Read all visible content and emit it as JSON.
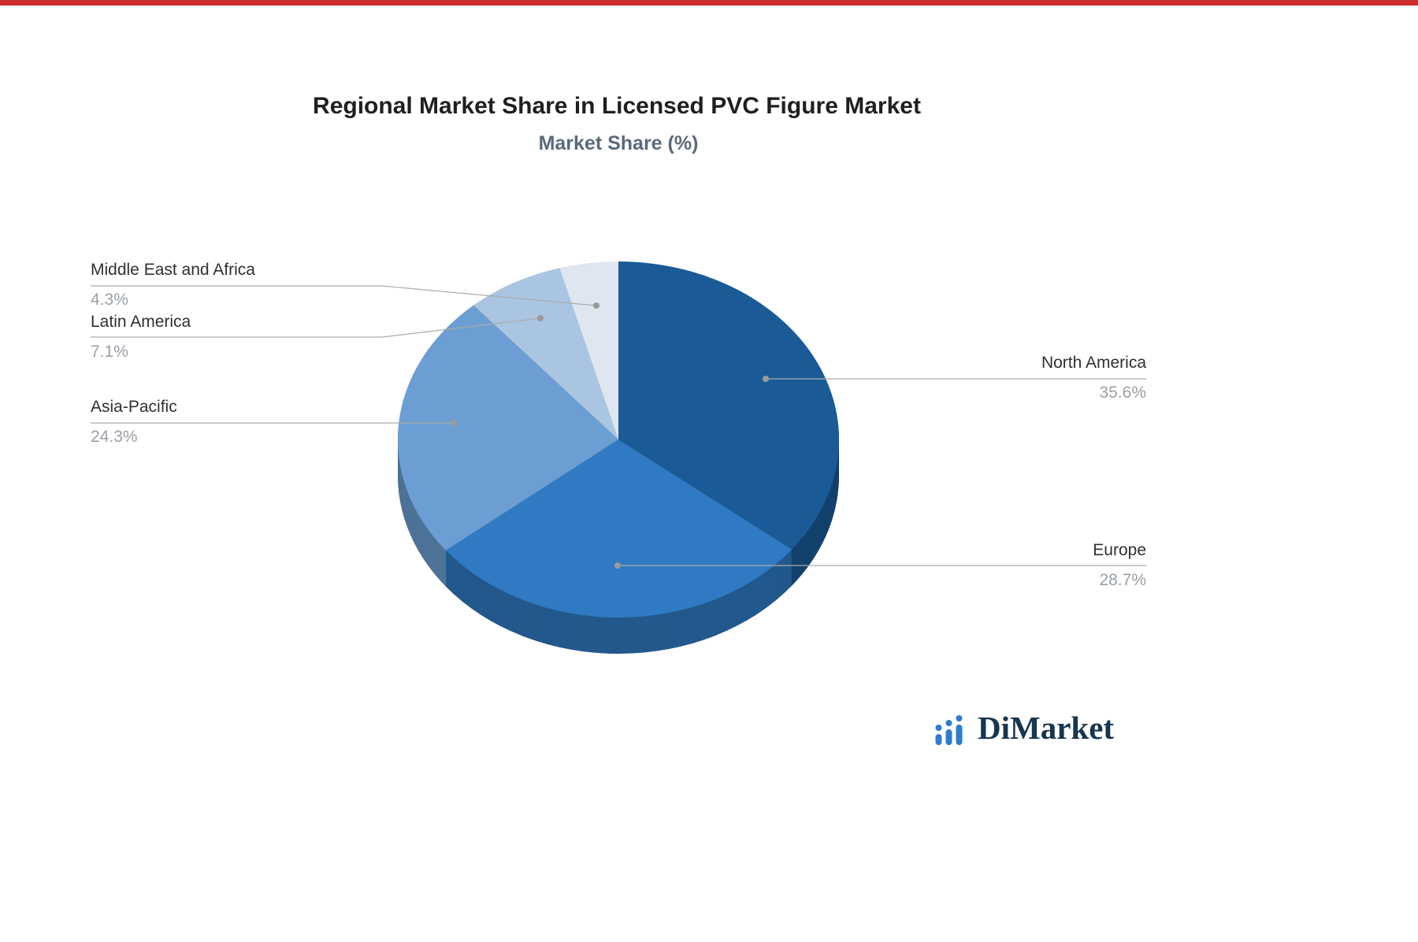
{
  "page": {
    "top_accent_color": "#cf2e2e"
  },
  "chart_data": {
    "type": "pie",
    "title": "Regional Market Share in Licensed PVC Figure Market",
    "subtitle": "Market Share (%)",
    "unit": "%",
    "legend_position": "none",
    "label_style": "callout-with-leader-lines",
    "style_3d": true,
    "slices": [
      {
        "name": "North America",
        "value": 35.6,
        "value_label": "35.6%",
        "color": "#1a5b97"
      },
      {
        "name": "Europe",
        "value": 28.7,
        "value_label": "28.7%",
        "color": "#2f7ac2"
      },
      {
        "name": "Asia-Pacific",
        "value": 24.3,
        "value_label": "24.3%",
        "color": "#6d9ed3"
      },
      {
        "name": "Latin America",
        "value": 7.1,
        "value_label": "7.1%",
        "color": "#aac5e2"
      },
      {
        "name": "Middle East and Africa",
        "value": 4.3,
        "value_label": "4.3%",
        "color": "#dfe6ef"
      }
    ]
  },
  "branding": {
    "logo_text": "DiMarket",
    "logo_color": "#2e7bd0",
    "logo_text_color": "#17364f"
  }
}
